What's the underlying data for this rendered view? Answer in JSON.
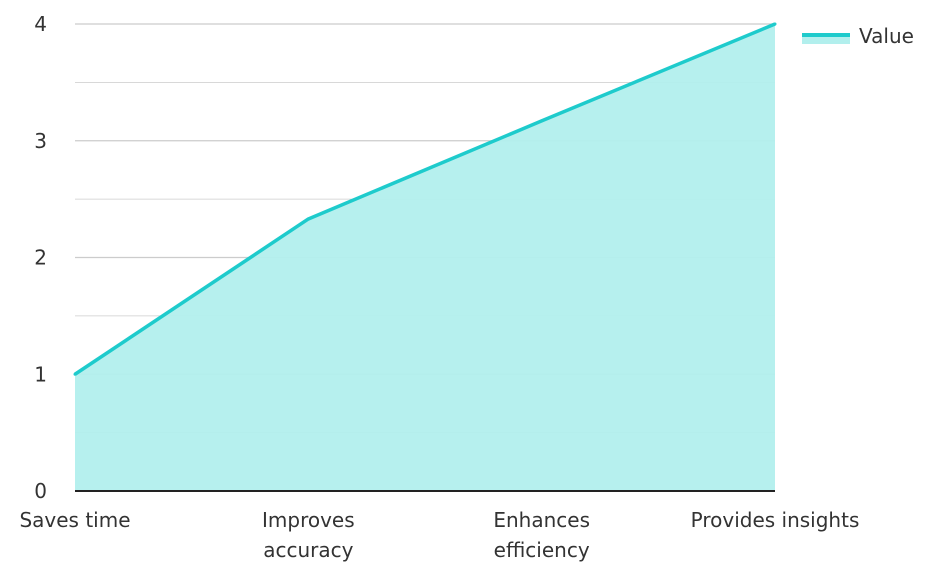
{
  "chart_data": {
    "type": "area",
    "categories": [
      "Saves time",
      "Improves\naccuracy",
      "Enhances\nefficiency",
      "Provides insights"
    ],
    "series": [
      {
        "name": "Value",
        "values": [
          1,
          2.33,
          3.17,
          4
        ]
      }
    ],
    "ylim": [
      0,
      4
    ],
    "yticks": [
      "0",
      "1",
      "2",
      "3",
      "4"
    ],
    "grid": true,
    "legend": "top-right",
    "colors": {
      "line": "#1ecbcc",
      "fill": "#b2efed",
      "grid": "#cccccc",
      "axis": "#222222"
    }
  }
}
